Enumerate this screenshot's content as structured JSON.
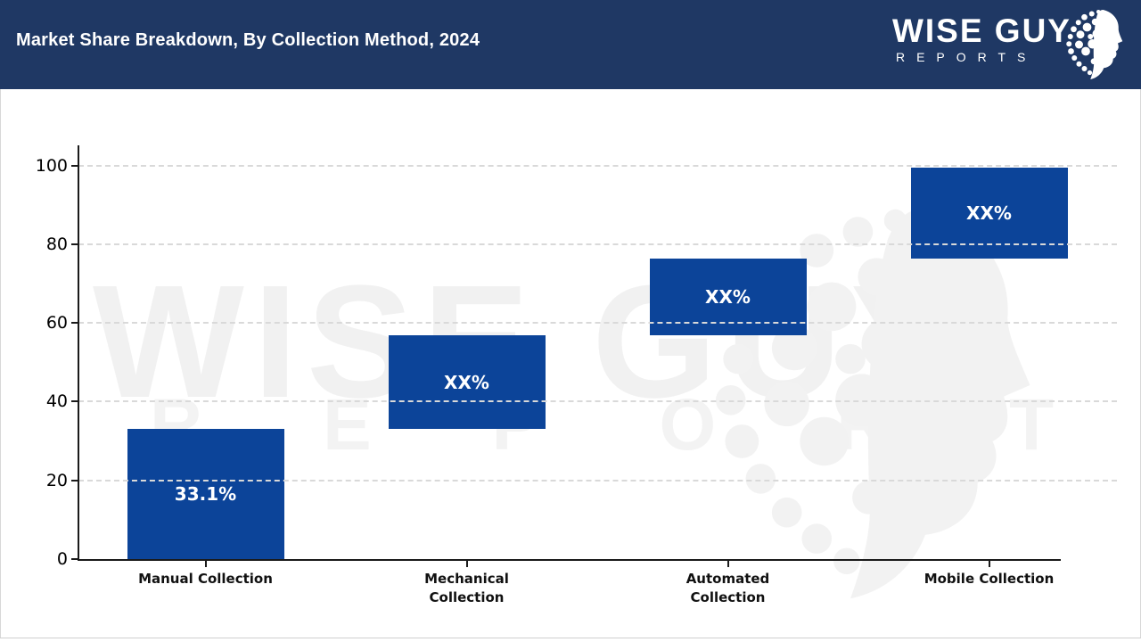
{
  "header": {
    "title": "Market Share Breakdown, By Collection Method, 2024",
    "logo": {
      "line1": "WISE GUY",
      "line2": "REPORTS"
    }
  },
  "watermark": {
    "line1": "WISE GUY",
    "line2": "R E P O R T S"
  },
  "colors": {
    "header_bg": "#1f3864",
    "bar": "#0c4499",
    "bar_label": "#ffffff",
    "grid": "#d9d9d9",
    "axis": "#1a1a1a",
    "watermark": "#f1f1f1"
  },
  "chart_data": {
    "type": "bar",
    "variant": "waterfall-floating-bars",
    "title": "Market Share Breakdown, By Collection Method, 2024",
    "categories": [
      "Manual Collection",
      "Mechanical\nCollection",
      "Automated\nCollection",
      "Mobile Collection"
    ],
    "segments": [
      {
        "category": "Manual Collection",
        "label": "33.1%",
        "start": 0,
        "end": 33.1
      },
      {
        "category": "Mechanical Collection",
        "label": "XX%",
        "start": 33.1,
        "end": 56.8
      },
      {
        "category": "Automated Collection",
        "label": "XX%",
        "start": 56.8,
        "end": 76.3
      },
      {
        "category": "Mobile Collection",
        "label": "XX%",
        "start": 76.3,
        "end": 99.5
      }
    ],
    "yticks": [
      0,
      20,
      40,
      60,
      80,
      100
    ],
    "ylim": [
      0,
      105
    ],
    "xlabel": "",
    "ylabel": "",
    "grid": "horizontal-dashed",
    "legend": "none"
  }
}
